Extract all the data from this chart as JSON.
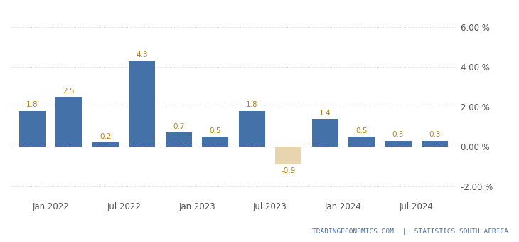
{
  "x_positions": [
    0,
    1,
    2,
    3,
    4,
    5,
    6,
    7,
    8,
    9,
    10,
    11
  ],
  "values": [
    1.8,
    2.5,
    0.2,
    4.3,
    0.7,
    0.5,
    1.8,
    -0.9,
    1.4,
    0.5,
    0.3,
    0.3
  ],
  "bar_colors": [
    "#4472a8",
    "#4472a8",
    "#4472a8",
    "#4472a8",
    "#4472a8",
    "#4472a8",
    "#4472a8",
    "#e8d5b0",
    "#4472a8",
    "#4472a8",
    "#4472a8",
    "#4472a8"
  ],
  "label_color": "#b8860b",
  "xtick_labels": [
    "Jan 2022",
    "Jul 2022",
    "Jan 2023",
    "Jul 2023",
    "Jan 2024",
    "Jul 2024"
  ],
  "xtick_positions": [
    0.5,
    2.5,
    4.5,
    6.5,
    8.5,
    10.5
  ],
  "ytick_values": [
    -2.0,
    0.0,
    2.0,
    4.0,
    6.0
  ],
  "ytick_labels": [
    "-2.00 %",
    "0.00 %",
    "2.00 %",
    "4.00 %",
    "6.00 %"
  ],
  "ylim": [
    -2.6,
    7.0
  ],
  "xlim": [
    -0.6,
    11.6
  ],
  "grid_color": "#cccccc",
  "background_color": "#ffffff",
  "bar_width": 0.72,
  "watermark": "TRADINGECONOMICS.COM  |  STATISTICS SOUTH AFRICA",
  "watermark_color": "#4a6fa8"
}
